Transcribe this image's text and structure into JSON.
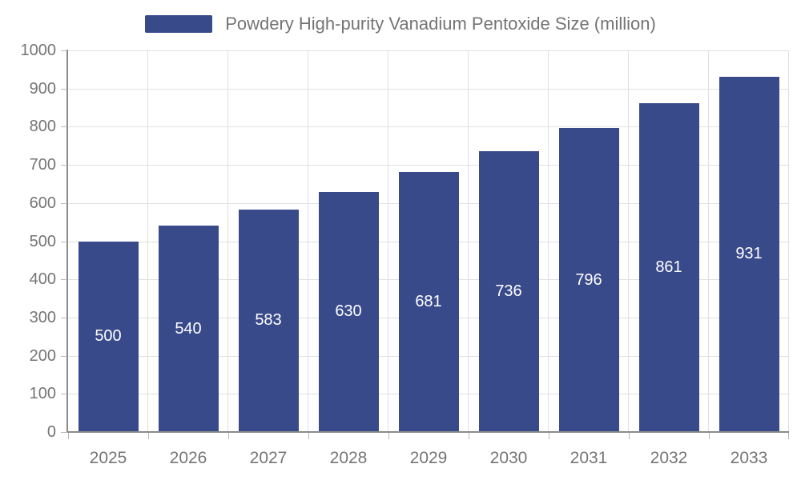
{
  "legend": {
    "label": "Powdery High-purity Vanadium Pentoxide Size (million)"
  },
  "colors": {
    "bar": "#394a8b",
    "bar_value_text": "#ffffff",
    "axis_text": "#757575",
    "legend_text": "#747474",
    "grid_line": "#e0e0e0",
    "axis_line": "#8a8a8a",
    "tick_mark": "#b9b9b9",
    "background": "#ffffff"
  },
  "chart_data": {
    "type": "bar",
    "title": "Powdery High-purity Vanadium Pentoxide Size (million)",
    "categories": [
      "2025",
      "2026",
      "2027",
      "2028",
      "2029",
      "2030",
      "2031",
      "2032",
      "2033"
    ],
    "values": [
      500,
      540,
      583,
      630,
      681,
      736,
      796,
      861,
      931
    ],
    "xlabel": "",
    "ylabel": "",
    "ylim": [
      0,
      1000
    ],
    "ytick_interval": 100,
    "ytick_labels": [
      "0",
      "100",
      "200",
      "300",
      "400",
      "500",
      "600",
      "700",
      "800",
      "900",
      "1000"
    ],
    "grid": true,
    "legend_position": "top",
    "value_labels": "inside-center"
  }
}
